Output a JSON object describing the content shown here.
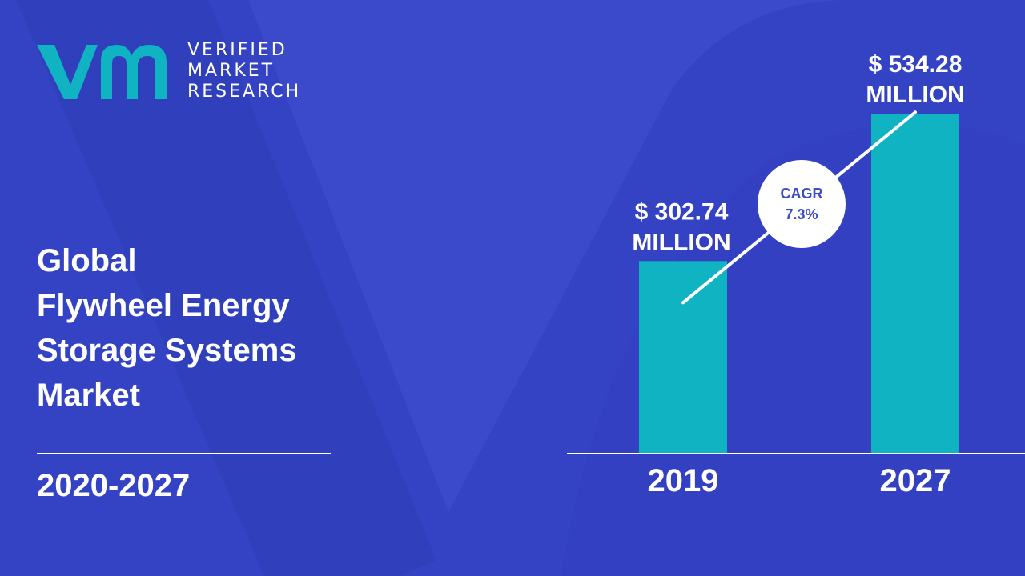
{
  "brand": {
    "line1": "VERIFIED",
    "line2": "MARKET",
    "line3": "RESEARCH",
    "colors": {
      "teal": "#0fb3c1",
      "background": "#3b4acb",
      "shape": "#2f3db8"
    }
  },
  "title_lines": [
    "Global",
    "Flywheel Energy",
    "Storage Systems",
    "Market"
  ],
  "period": "2020-2027",
  "cagr": {
    "label": "CAGR",
    "value": "7.3%"
  },
  "chart_data": {
    "type": "bar",
    "title": "Global Flywheel Energy Storage Systems Market",
    "categories": [
      "2019",
      "2027"
    ],
    "values": [
      302.74,
      534.28
    ],
    "value_labels": [
      [
        "$ 302.74",
        "MILLION"
      ],
      [
        "$ 534.28",
        "MILLION"
      ]
    ],
    "unit": "USD Million",
    "ylim": [
      0,
      600
    ],
    "xlabel": "",
    "ylabel": "",
    "grid": false
  }
}
